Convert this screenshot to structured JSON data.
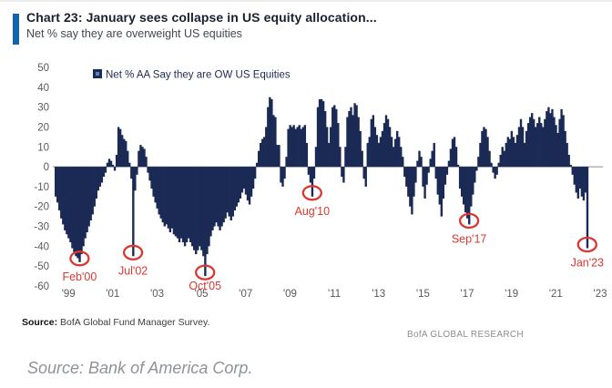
{
  "header": {
    "title": "Chart 23: January sees collapse in US equity allocation...",
    "subtitle": "Net % say they are overweight US equities"
  },
  "legend": {
    "label": "Net % AA Say they are OW US Equities"
  },
  "footer": {
    "source_prefix": "Source:",
    "source_text": " BofA Global Fund Manager Survey.",
    "brand": "BofA GLOBAL RESEARCH"
  },
  "caption": "Source: Bank of America Corp.",
  "colors": {
    "bar": "#1b2a55",
    "accent": "#1065ad",
    "annotation": "#d93832",
    "axis_text": "#595959",
    "zero_line": "#8c8c8c",
    "legend_inner": "#5b83c0"
  },
  "chart_data": {
    "type": "bar",
    "title": "Net % AA Say they are OW US Equities",
    "ylabel": "Net %",
    "xlabel": "",
    "x_start": "1999-01",
    "x_end": "2023-01",
    "frequency": "monthly",
    "ylim": [
      -60,
      50
    ],
    "grid": false,
    "legend_position": "top-left",
    "yticks": [
      50,
      40,
      30,
      20,
      10,
      0,
      -10,
      -20,
      -30,
      -40,
      -50,
      -60
    ],
    "xticks": [
      {
        "label": "'99",
        "index": 0
      },
      {
        "label": "'01",
        "index": 24
      },
      {
        "label": "'03",
        "index": 48
      },
      {
        "label": "'05",
        "index": 72
      },
      {
        "label": "'07",
        "index": 96
      },
      {
        "label": "'09",
        "index": 120
      },
      {
        "label": "'11",
        "index": 144
      },
      {
        "label": "'13",
        "index": 168
      },
      {
        "label": "'15",
        "index": 192
      },
      {
        "label": "'17",
        "index": 216
      },
      {
        "label": "'19",
        "index": 240
      },
      {
        "label": "'21",
        "index": 264
      },
      {
        "label": "'23",
        "index": 288
      }
    ],
    "values": [
      -15,
      -18,
      -22,
      -26,
      -29,
      -32,
      -34,
      -36,
      -38,
      -41,
      -43,
      -45,
      -46,
      -48,
      -44,
      -40,
      -36,
      -33,
      -30,
      -27,
      -24,
      -20,
      -16,
      -12,
      -10,
      -8,
      -5,
      -3,
      2,
      4,
      3,
      1,
      -2,
      6,
      20,
      19,
      16,
      14,
      13,
      8,
      2,
      -6,
      -45,
      -12,
      -4,
      8,
      11,
      10,
      9,
      5,
      -3,
      -7,
      -11,
      -15,
      -18,
      -21,
      -24,
      -26,
      -28,
      -30,
      -29,
      -31,
      -33,
      -31,
      -34,
      -35,
      -36,
      -38,
      -36,
      -38,
      -40,
      -38,
      -36,
      -38,
      -40,
      -42,
      -44,
      -42,
      -40,
      -42,
      -45,
      -55,
      -44,
      -40,
      -35,
      -32,
      -30,
      -28,
      -30,
      -32,
      -30,
      -28,
      -26,
      -23,
      -25,
      -27,
      -25,
      -22,
      -20,
      -18,
      -16,
      -13,
      -11,
      -14,
      -17,
      -19,
      -15,
      -11,
      -6,
      2,
      8,
      12,
      14,
      15,
      20,
      30,
      35,
      34,
      26,
      25,
      11,
      11,
      -8,
      -10,
      -6,
      5,
      19,
      21,
      20,
      21,
      19,
      20,
      21,
      19,
      20,
      21,
      12,
      -4,
      -8,
      -15,
      -6,
      10,
      30,
      34,
      34,
      33,
      28,
      20,
      12,
      20,
      30,
      31,
      29,
      22,
      10,
      -5,
      -8,
      10,
      25,
      28,
      30,
      26,
      32,
      31,
      25,
      18,
      8,
      -6,
      -10,
      12,
      15,
      24,
      26,
      20,
      16,
      12,
      15,
      18,
      22,
      26,
      24,
      20,
      15,
      10,
      14,
      18,
      15,
      10,
      5,
      -5,
      -10,
      -15,
      -20,
      -24,
      -15,
      -8,
      3,
      8,
      5,
      -10,
      -16,
      -9,
      -3,
      4,
      8,
      12,
      -6,
      -14,
      -19,
      -25,
      -16,
      -9,
      -4,
      3,
      9,
      14,
      15,
      10,
      1,
      -11,
      -15,
      -19,
      -23,
      -26,
      -29,
      -20,
      -14,
      -8,
      -2,
      5,
      12,
      18,
      20,
      19,
      15,
      8,
      2,
      -3,
      -6,
      -4,
      2,
      6,
      10,
      8,
      12,
      15,
      14,
      18,
      15,
      12,
      16,
      20,
      24,
      20,
      12,
      18,
      22,
      25,
      27,
      24,
      20,
      22,
      25,
      22,
      20,
      24,
      28,
      30,
      27,
      29,
      25,
      21,
      17,
      24,
      29,
      26,
      18,
      12,
      6,
      1,
      -4,
      -9,
      -13,
      -16,
      -11,
      -15,
      -17,
      -13,
      -41
    ],
    "annotations": [
      {
        "label": "Feb'00",
        "index": 13,
        "value": -48,
        "dy": 20
      },
      {
        "label": "Jul'02",
        "index": 42,
        "value": -45,
        "dy": 20
      },
      {
        "label": "Oct'05",
        "index": 81,
        "value": -55,
        "dy": 15
      },
      {
        "label": "Aug'10",
        "index": 139,
        "value": -15,
        "dy": 20
      },
      {
        "label": "Sep'17",
        "index": 224,
        "value": -29,
        "dy": 20
      },
      {
        "label": "Jan'23",
        "index": 288,
        "value": -41,
        "dy": 20
      }
    ]
  }
}
